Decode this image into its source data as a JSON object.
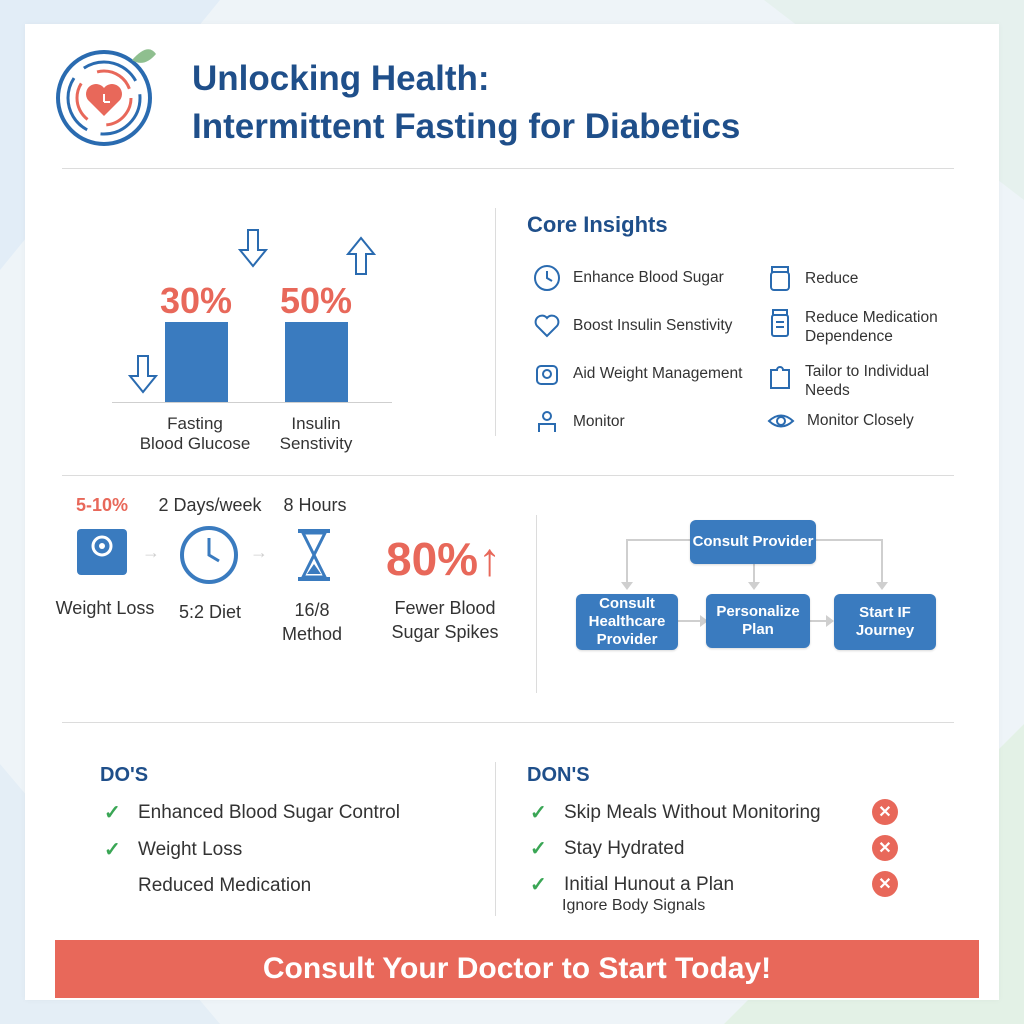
{
  "header": {
    "title_line1": "Unlocking Health:",
    "title_line2": "Intermittent Fasting for Diabetics"
  },
  "bars": [
    {
      "pct": "30%",
      "label_line1": "Fasting",
      "label_line2": "Blood Glucose",
      "value": 30,
      "direction": "down"
    },
    {
      "pct": "50%",
      "label_line1": "Insulin",
      "label_line2": "Senstivity",
      "value": 50,
      "direction": "up"
    }
  ],
  "core_insights": {
    "title": "Core Insights",
    "left": [
      {
        "icon": "clock-icon",
        "label": "Enhance Blood Sugar"
      },
      {
        "icon": "heart-icon",
        "label": "Boost Insulin Senstivity"
      },
      {
        "icon": "scale-icon",
        "label": "Aid Weight Management"
      },
      {
        "icon": "person-monitor-icon",
        "label": "Monitor"
      }
    ],
    "right": [
      {
        "icon": "jar-icon",
        "label_line1": "Reduce",
        "label_line2": ""
      },
      {
        "icon": "pill-bottle-icon",
        "label_line1": "Reduce Medication",
        "label_line2": "Dependence"
      },
      {
        "icon": "puzzle-icon",
        "label_line1": "Tailor to Individual",
        "label_line2": "Needs"
      },
      {
        "icon": "eye-icon",
        "label_line1": "Monitor Closely",
        "label_line2": ""
      }
    ]
  },
  "stats": {
    "weight_top": "5-10%",
    "weight_label": "Weight Loss",
    "diet_top": "2 Days/week",
    "diet_label": "5:2 Diet",
    "method_top": "8 Hours",
    "method_label_line1": "16/8",
    "method_label_line2": "Method",
    "big_pct": "80%↑",
    "big_label_line1": "Fewer Blood",
    "big_label_line2": "Sugar Spikes"
  },
  "flow": {
    "top": "Consult Provider",
    "step1": "Consult Healthcare Provider",
    "step2": "Personalize Plan",
    "step3": "Start IF Journey"
  },
  "dos": {
    "title": "DO'S",
    "items": [
      "Enhanced Blood Sugar Control",
      "Weight Loss",
      "Reduced Medication"
    ]
  },
  "donts": {
    "title": "DON'S",
    "items": [
      "Skip Meals Without Monitoring",
      "Stay Hydrated",
      "Initial Hunout a Plan"
    ],
    "note": "Ignore Body Signals"
  },
  "cta": "Consult Your Doctor to Start Today!",
  "colors": {
    "primary": "#1f4f8a",
    "accent_blue": "#3a7bbf",
    "accent_red": "#e8685a",
    "green": "#3aa655"
  }
}
